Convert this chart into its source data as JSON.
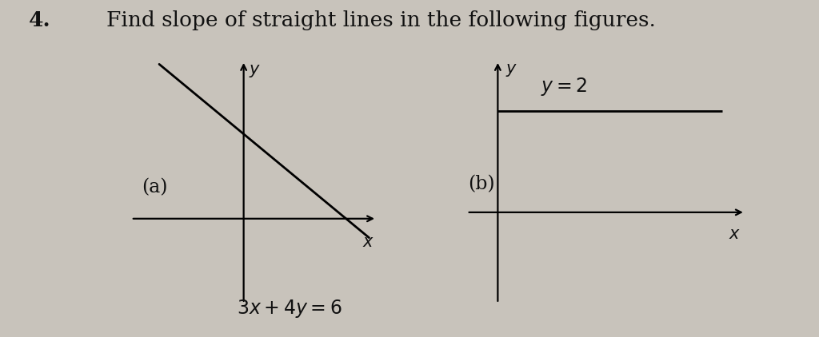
{
  "bg_color": "#c8c3bb",
  "fig_width": 10.24,
  "fig_height": 4.22,
  "title_num": "4.",
  "title_text": "Find slope of straight lines in the following figures.",
  "title_fontsize": 19,
  "title_color": "#111111",
  "panel_a_label": "(a)",
  "panel_a_eq": "$3x + 4y = 6$",
  "panel_b_label": "(b)",
  "panel_b_eq": "$y = 2$",
  "axis_color": "#000000",
  "line_color": "#000000",
  "text_color": "#111111",
  "label_fontsize": 15,
  "eq_fontsize": 17
}
